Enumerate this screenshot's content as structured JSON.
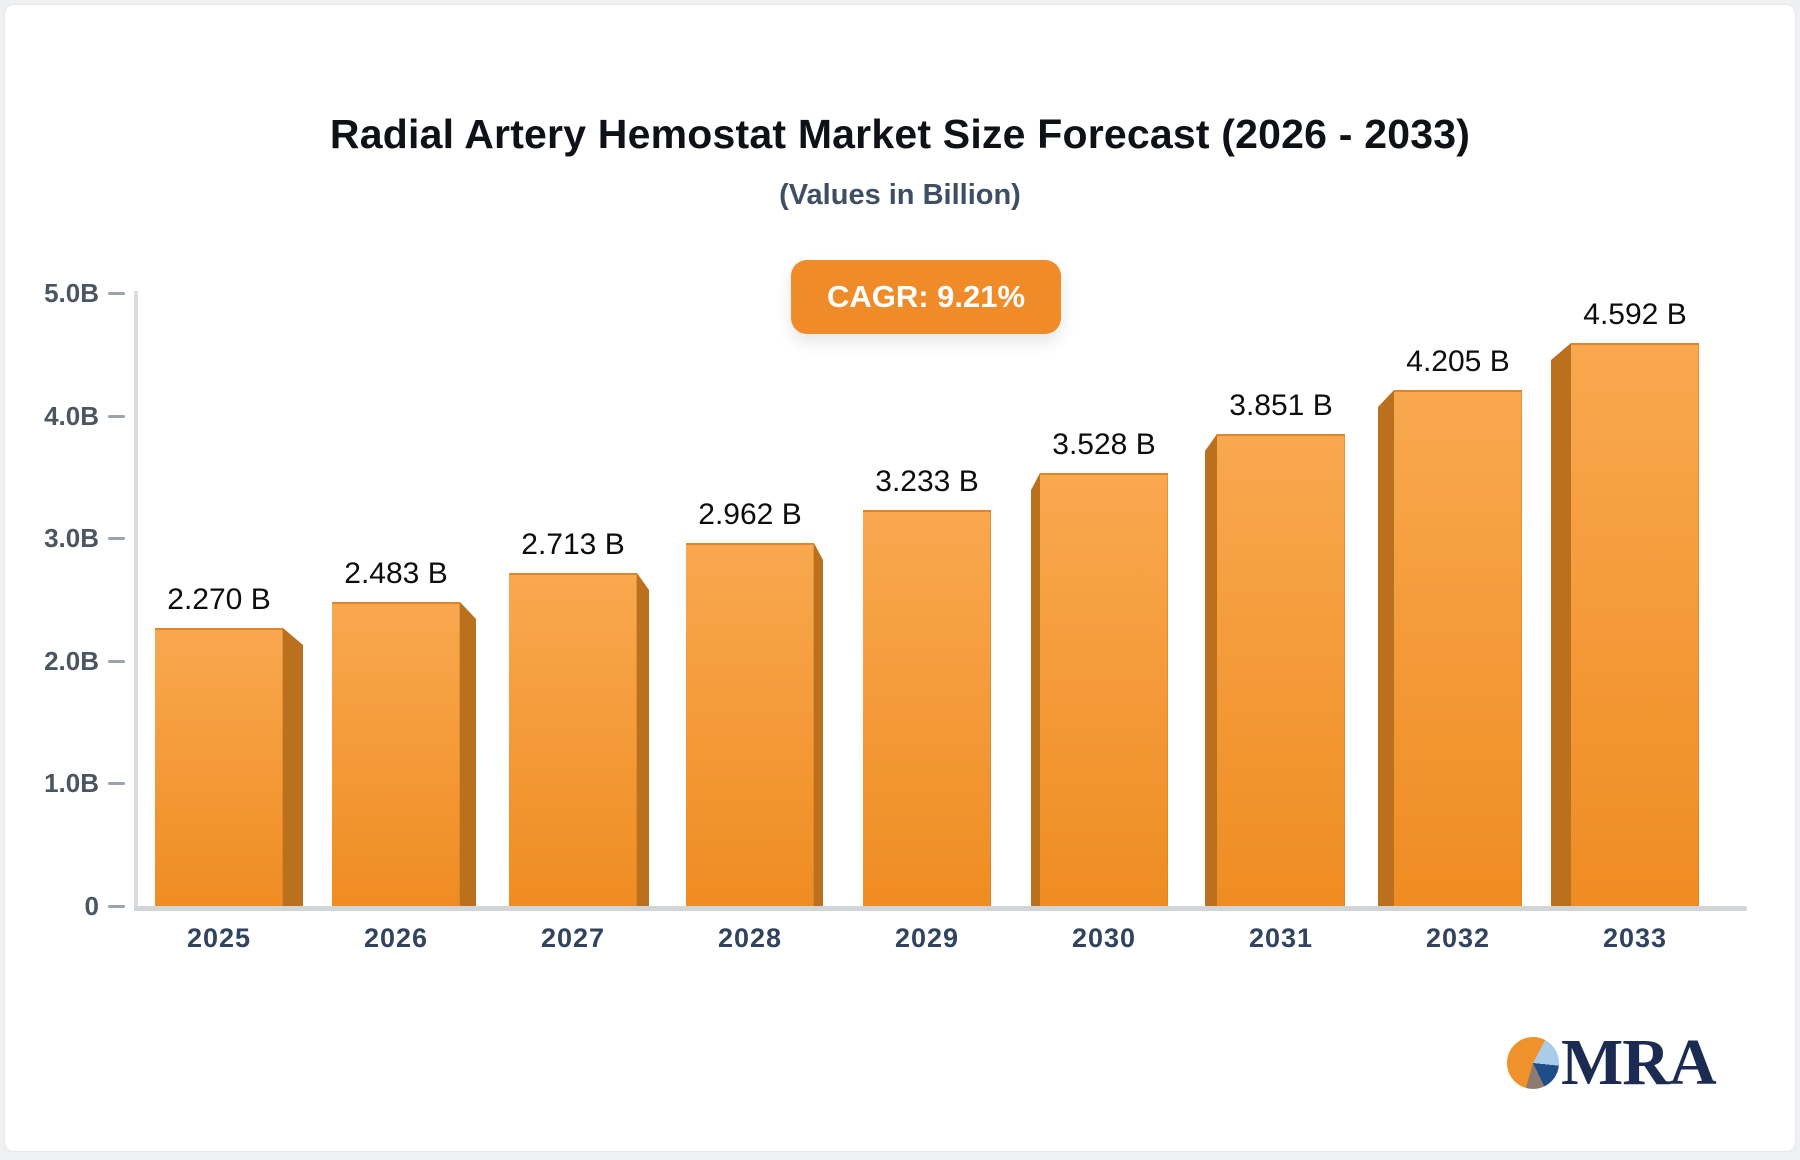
{
  "header": {
    "title": "Radial Artery Hemostat Market Size Forecast (2026 - 2033)",
    "subtitle": "(Values in Billion)"
  },
  "badge": {
    "label": "CAGR: 9.21%",
    "bg": "#f08b2a",
    "text_color": "#ffffff"
  },
  "chart_data": {
    "type": "bar",
    "title": "Radial Artery Hemostat Market Size Forecast (2026 - 2033)",
    "subtitle": "(Values in Billion)",
    "cagr": "9.21%",
    "categories": [
      "2025",
      "2026",
      "2027",
      "2028",
      "2029",
      "2030",
      "2031",
      "2032",
      "2033"
    ],
    "values": [
      2.27,
      2.483,
      2.713,
      2.962,
      3.233,
      3.528,
      3.851,
      4.205,
      4.592
    ],
    "value_labels": [
      "2.270 B",
      "2.483 B",
      "2.713 B",
      "2.962 B",
      "3.233 B",
      "3.528 B",
      "3.851 B",
      "4.205 B",
      "4.592 B"
    ],
    "xlabel": "",
    "ylabel": "",
    "ylim": [
      0,
      5
    ],
    "grid": false,
    "legend": false,
    "yticks": [
      {
        "label": "5.0B",
        "value": 5.0
      },
      {
        "label": "4.0B",
        "value": 4.0
      },
      {
        "label": "3.0B",
        "value": 3.0
      },
      {
        "label": "2.0B",
        "value": 2.0
      },
      {
        "label": "1.0B",
        "value": 1.0
      },
      {
        "label": "0",
        "value": 0.0
      }
    ],
    "bar_gradient_top": "#f9a84f",
    "bar_gradient_bottom": "#ef8c22",
    "bar_side_color": "#ba701d",
    "axis_color": "#d2d5d7",
    "tick_color": "#9aa3ae"
  },
  "logo": {
    "text": "MRA",
    "pie_colors": [
      "#f0922b",
      "#a9cce9",
      "#1d4e89",
      "#8d7a70"
    ]
  }
}
